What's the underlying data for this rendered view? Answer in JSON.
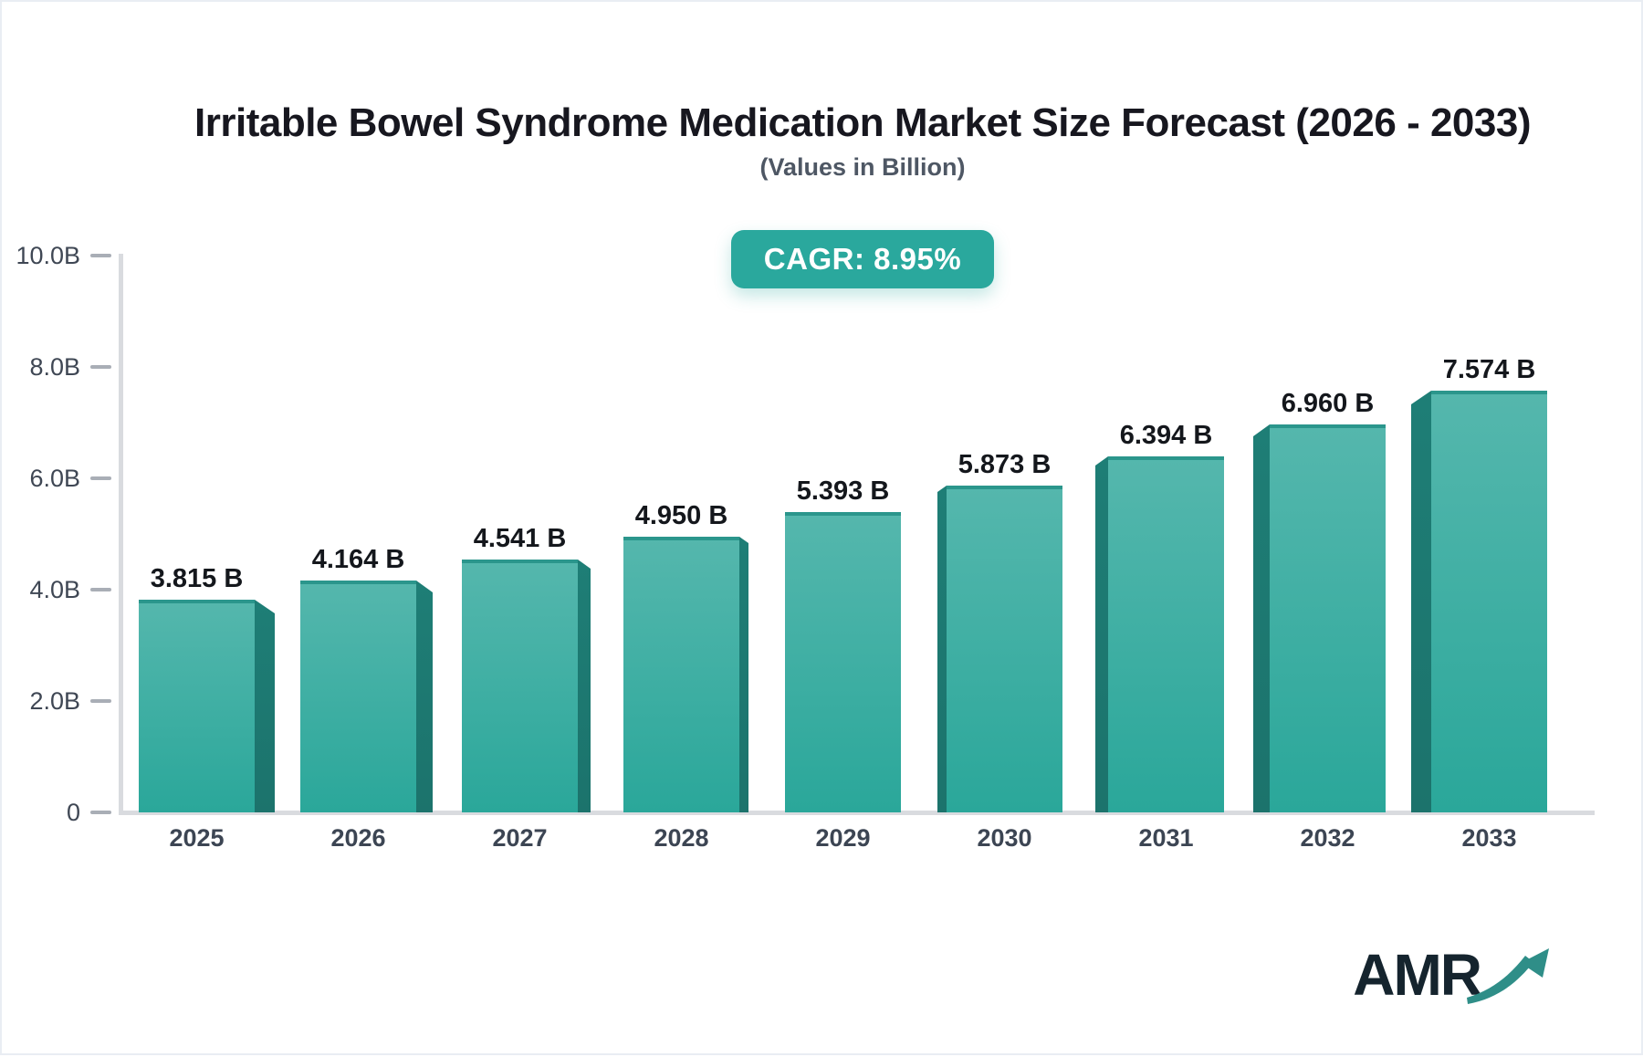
{
  "header": {
    "title": "Irritable Bowel Syndrome Medication Market Size Forecast (2026 - 2033)",
    "subtitle": "(Values in Billion)",
    "cagr_label": "CAGR: 8.95%"
  },
  "logo": {
    "text": "AMR"
  },
  "chart_data": {
    "type": "bar",
    "title": "Irritable Bowel Syndrome Medication Market Size Forecast (2026 - 2033)",
    "subtitle": "(Values in Billion)",
    "cagr_percent": 8.95,
    "categories": [
      "2025",
      "2026",
      "2027",
      "2028",
      "2029",
      "2030",
      "2031",
      "2032",
      "2033"
    ],
    "values": [
      3.815,
      4.164,
      4.541,
      4.95,
      5.393,
      5.873,
      6.394,
      6.96,
      7.574
    ],
    "value_labels": [
      "3.815 B",
      "4.164 B",
      "4.541 B",
      "4.950 B",
      "5.393 B",
      "5.873 B",
      "6.394 B",
      "6.960 B",
      "7.574 B"
    ],
    "xlabel": "",
    "ylabel": "",
    "ylim": [
      0,
      10
    ],
    "yticks": [
      {
        "value": 0,
        "label": "0"
      },
      {
        "value": 2,
        "label": "2.0B"
      },
      {
        "value": 4,
        "label": "4.0B"
      },
      {
        "value": 6,
        "label": "6.0B"
      },
      {
        "value": 8,
        "label": "8.0B"
      },
      {
        "value": 10,
        "label": "10.0B"
      }
    ],
    "grid": false,
    "legend": "none",
    "bar_style": "3d-perspective-center",
    "colors": {
      "bar_top": "#55b7ad",
      "bar_bottom": "#2aa79a",
      "bar_side": "#1e7e76",
      "bar_side_dark": "#1c736c",
      "bar_top_edge": "#2b968c",
      "axis_line": "#d9dbdf",
      "tick_dash": "#a9aeb6",
      "tick_label": "#3f4754",
      "value_label": "#14171c",
      "year_label": "#3c4553",
      "badge_bg": "#2aa89d",
      "badge_text": "#ffffff",
      "logo_text": "#15242e",
      "logo_arrow": "#2f8e88"
    }
  }
}
